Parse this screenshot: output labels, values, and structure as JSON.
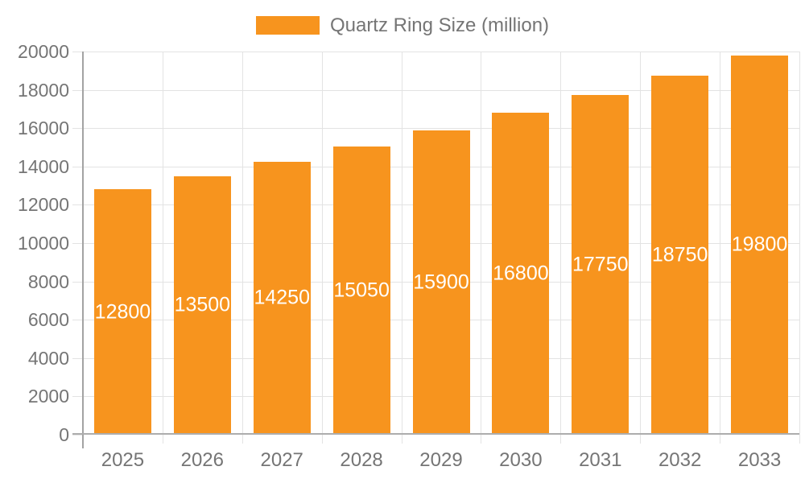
{
  "chart_data": {
    "type": "bar",
    "title": "",
    "categories": [
      "2025",
      "2026",
      "2027",
      "2028",
      "2029",
      "2030",
      "2031",
      "2032",
      "2033"
    ],
    "series": [
      {
        "name": "Quartz Ring Size (million)",
        "values": [
          12800,
          13500,
          14250,
          15050,
          15900,
          16800,
          17750,
          18750,
          19800
        ]
      }
    ],
    "xlabel": "",
    "ylabel": "",
    "ylim": [
      0,
      20000
    ],
    "ytick_step": 2000,
    "yticks": [
      0,
      2000,
      4000,
      6000,
      8000,
      10000,
      12000,
      14000,
      16000,
      18000,
      20000
    ],
    "grid": true,
    "legend_position": "top-center",
    "bar_label_position": "inside-center",
    "colors": {
      "bar": "#F7941E",
      "bar_label": "#FFFFFF",
      "axis_text": "#757575",
      "grid_line": "#E3E3E3",
      "x_axis_line": "#ADADAD",
      "y_axis_line": "#A3A3A3",
      "background": "#FFFFFF"
    }
  }
}
